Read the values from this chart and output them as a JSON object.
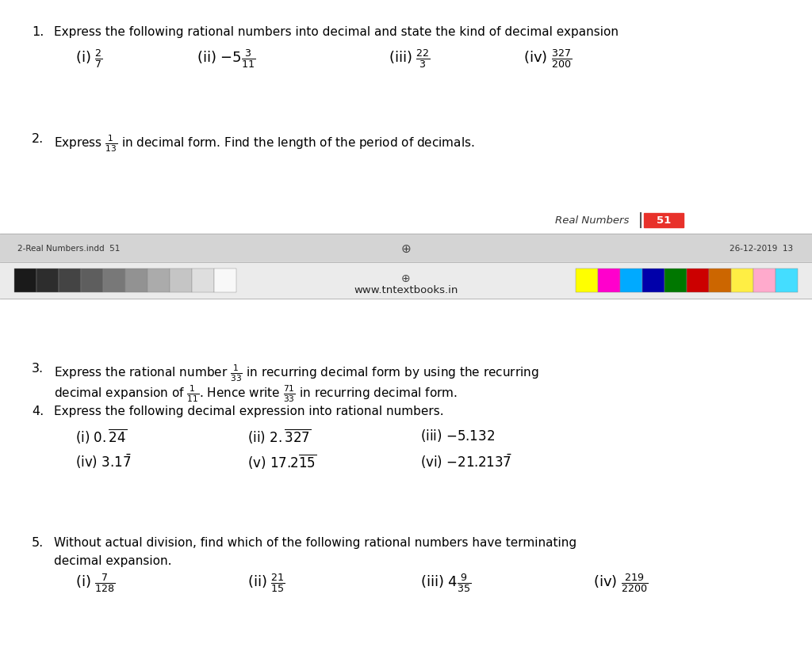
{
  "bg_color": "#ffffff",
  "red_block_color": "#e8312a",
  "page_number": "51",
  "header_label": "Real Numbers",
  "footer_text_left": "2-Real Numbers.indd  51",
  "footer_text_right": "26-12-2019  13",
  "website": "www.tntextbooks.in",
  "gray_swatches": [
    "#1a1a1a",
    "#2d2d2d",
    "#444444",
    "#5e5e5e",
    "#787878",
    "#929292",
    "#ababab",
    "#c5c5c5",
    "#dedede",
    "#f8f8f8"
  ],
  "color_swatches": [
    "#ffff00",
    "#ff00cc",
    "#00aaff",
    "#0000aa",
    "#007700",
    "#cc0000",
    "#cc6600",
    "#ffee44",
    "#ffaacc",
    "#44ddff"
  ],
  "q1_line1": "Express the following rational numbers into decimal and state the kind of decimal expansion",
  "q2_line1": "in decimal form. Find the length of the period of decimals.",
  "q3_line1": "Express the rational number",
  "q3_line2": "in recurring decimal form by using the recurring",
  "q3_line3": "decimal expansion of",
  "q3_line4": ". Hence write",
  "q3_line5": "in recurring decimal form.",
  "q4_line1": "Express the following decimal expression into rational numbers.",
  "q5_line1": "Without actual division, find which of the following rational numbers have terminating",
  "q5_line2": "decimal expansion."
}
